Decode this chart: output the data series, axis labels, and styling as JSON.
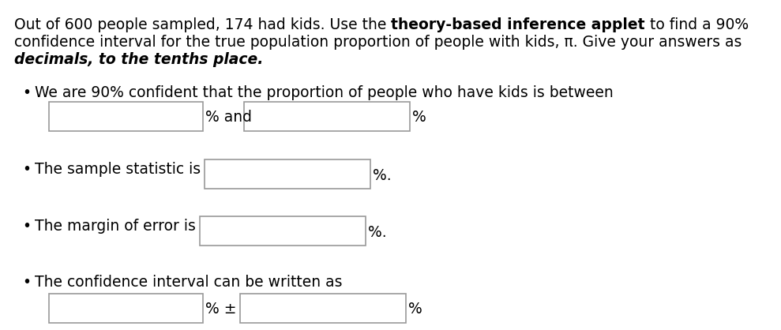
{
  "bg_color": "#ffffff",
  "text_color": "#000000",
  "fs": 13.5,
  "line1_parts": [
    {
      "text": "Out of 600 people sampled, 174 had kids. Use the ",
      "weight": "normal",
      "style": "normal"
    },
    {
      "text": "theory-based inference applet",
      "weight": "bold",
      "style": "normal"
    },
    {
      "text": " to find a 90%",
      "weight": "normal",
      "style": "normal"
    }
  ],
  "line2": "confidence interval for the true population proportion of people with kids, π. Give your answers as",
  "line3": "decimals, to the tenths place.",
  "b1_text": "We are 90% confident that the proportion of people who have kids is between",
  "b1_box1_after": "% and",
  "b1_box2_after": "%",
  "b2_text": "The sample statistic is",
  "b2_box_after": "%.",
  "b3_text": "The margin of error is",
  "b3_box_after": "%.",
  "b4_text": "The confidence interval can be written as",
  "b4_box1_after": "% ±",
  "b4_box2_after": "%",
  "box_edge": "#999999",
  "box_face": "#ffffff"
}
